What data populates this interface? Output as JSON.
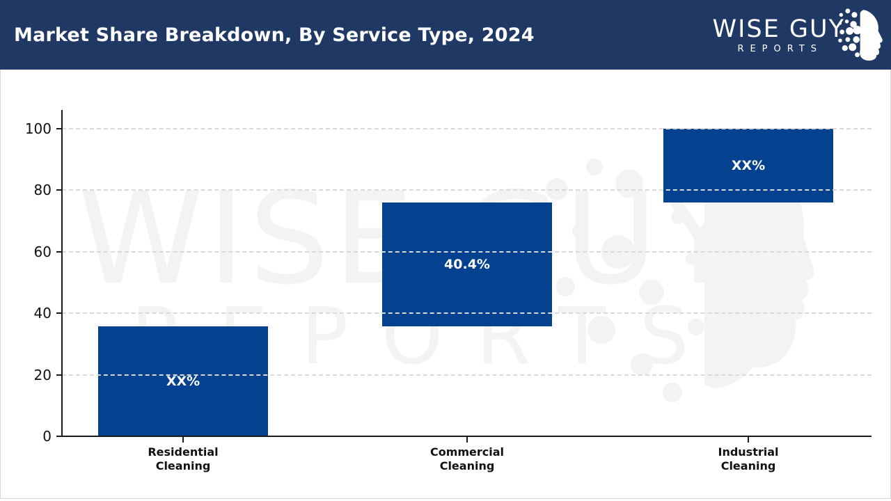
{
  "header": {
    "title": "Market Share Breakdown, By Service Type, 2024",
    "logo": {
      "line1": "WISE GUY",
      "line2": "REPORTS"
    }
  },
  "watermark": {
    "line1": "WISE GUY",
    "line2": "REPORTS"
  },
  "chart_data": {
    "type": "bar",
    "subtype": "floating-waterfall",
    "title": "Market Share Breakdown, By Service Type, 2024",
    "categories": [
      "Residential\nCleaning",
      "Commercial\nCleaning",
      "Industrial\nCleaning"
    ],
    "bars": [
      {
        "category": "Residential Cleaning",
        "start": 0,
        "end": 35.7,
        "label": "XX%"
      },
      {
        "category": "Commercial Cleaning",
        "start": 35.7,
        "end": 76.1,
        "label": "40.4%"
      },
      {
        "category": "Industrial Cleaning",
        "start": 76.1,
        "end": 100,
        "label": "XX%"
      }
    ],
    "yticks": [
      0,
      20,
      40,
      60,
      80,
      100
    ],
    "ylim": [
      0,
      106
    ],
    "grid": "dashed-horizontal",
    "legend": "none",
    "bar_color": "#04418F",
    "gridline_color": "#d9d9d9",
    "header_color": "#1F3864"
  }
}
